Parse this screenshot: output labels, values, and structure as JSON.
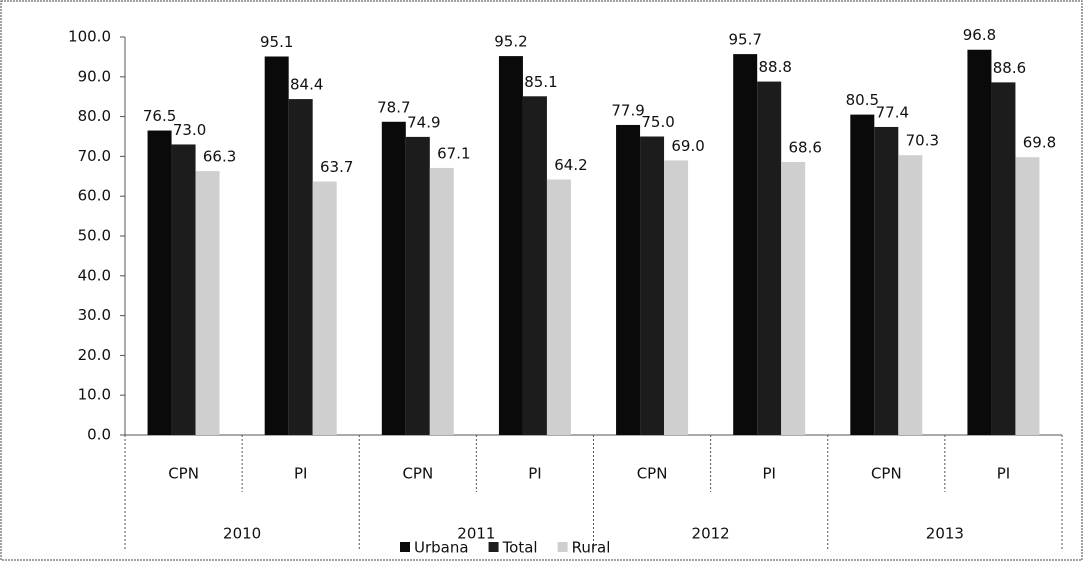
{
  "chart_data": {
    "type": "bar",
    "categories": [
      "CPN",
      "PI",
      "CPN",
      "PI",
      "CPN",
      "PI",
      "CPN",
      "PI"
    ],
    "category_groups": [
      "2010",
      "2011",
      "2012",
      "2013"
    ],
    "series": [
      {
        "name": "Urbana",
        "color": "#0a0a0a",
        "values": [
          76.5,
          95.1,
          78.7,
          95.2,
          77.9,
          95.7,
          80.5,
          96.8
        ],
        "value_labels": [
          "76.5",
          "95.1",
          "78.7",
          "95.2",
          "77.9",
          "95.7",
          "80.5",
          "96.8"
        ]
      },
      {
        "name": "Total",
        "color": "#1c1c1c",
        "values": [
          73.0,
          84.4,
          74.9,
          85.1,
          75.0,
          88.8,
          77.4,
          88.6
        ],
        "value_labels": [
          "73.0",
          "84.4",
          "74.9",
          "85.1",
          "75.0",
          "88.8",
          "77.4",
          "88.6"
        ]
      },
      {
        "name": "Rural",
        "color": "#cfcfcf",
        "values": [
          66.3,
          63.7,
          67.1,
          64.2,
          69.0,
          68.6,
          70.3,
          69.8
        ],
        "value_labels": [
          "66.3",
          "63.7",
          "67.1",
          "64.2",
          "69.0",
          "68.6",
          "70.3",
          "69.8"
        ]
      }
    ],
    "ylim": [
      0,
      100
    ],
    "yticks": [
      {
        "value": 0,
        "label": "0.0"
      },
      {
        "value": 10,
        "label": "10.0"
      },
      {
        "value": 20,
        "label": "20.0"
      },
      {
        "value": 30,
        "label": "30.0"
      },
      {
        "value": 40,
        "label": "40.0"
      },
      {
        "value": 50,
        "label": "50.0"
      },
      {
        "value": 60,
        "label": "60.0"
      },
      {
        "value": 70,
        "label": "70.0"
      },
      {
        "value": 80,
        "label": "80.0"
      },
      {
        "value": 90,
        "label": "90.0"
      },
      {
        "value": 100,
        "label": "100.0"
      }
    ],
    "legend": "bottom"
  }
}
